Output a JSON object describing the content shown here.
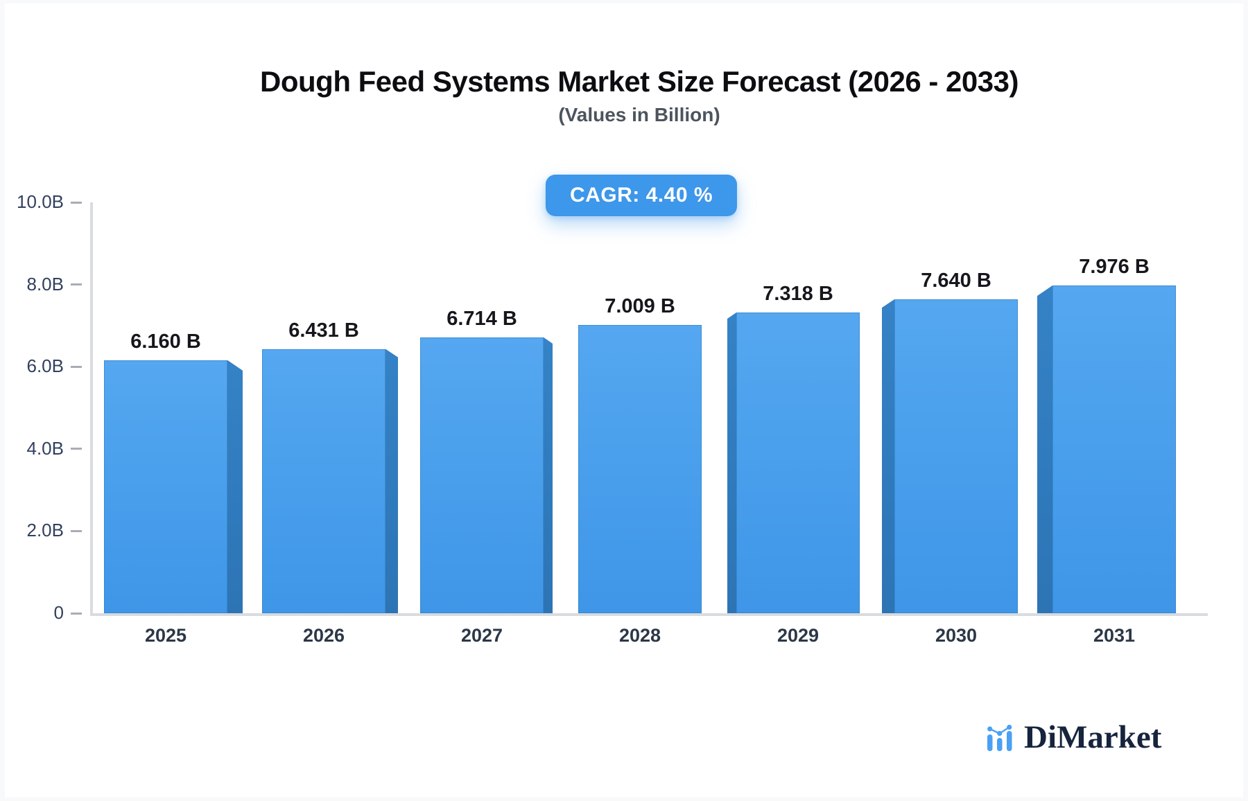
{
  "header": {
    "title": "Dough Feed Systems Market Size Forecast (2026 - 2033)",
    "subtitle": "(Values in Billion)"
  },
  "badge": {
    "label": "CAGR: 4.40 %",
    "color": "#3d97ea"
  },
  "chart_data": {
    "type": "bar",
    "title": "Dough Feed Systems Market Size Forecast (2026 - 2033)",
    "subtitle": "(Values in Billion)",
    "categories": [
      "2025",
      "2026",
      "2027",
      "2028",
      "2029",
      "2030",
      "2031"
    ],
    "values": [
      6.16,
      6.431,
      6.714,
      7.009,
      7.318,
      7.64,
      7.976
    ],
    "value_labels": [
      "6.160 B",
      "6.431 B",
      "6.714 B",
      "7.009 B",
      "7.318 B",
      "7.640 B",
      "7.976 B"
    ],
    "yticks": [
      {
        "label": "10.0B",
        "value": 10
      },
      {
        "label": "8.0B",
        "value": 8
      },
      {
        "label": "6.0B",
        "value": 6
      },
      {
        "label": "4.0B",
        "value": 4
      },
      {
        "label": "2.0B",
        "value": 2
      },
      {
        "label": "0",
        "value": 0
      }
    ],
    "ylim": [
      0,
      10
    ],
    "xlabel": "",
    "ylabel": "",
    "grid": false,
    "legend": "none",
    "bar_color": "#4aa0ec",
    "bar_side_color": "#2f7abc",
    "style": "3d-perspective-toward-center"
  },
  "logo": {
    "text": "DiMarket",
    "icon": "mini-bar-chart-icon",
    "accent_color": "#4aa0f5",
    "text_color": "#16243d"
  }
}
